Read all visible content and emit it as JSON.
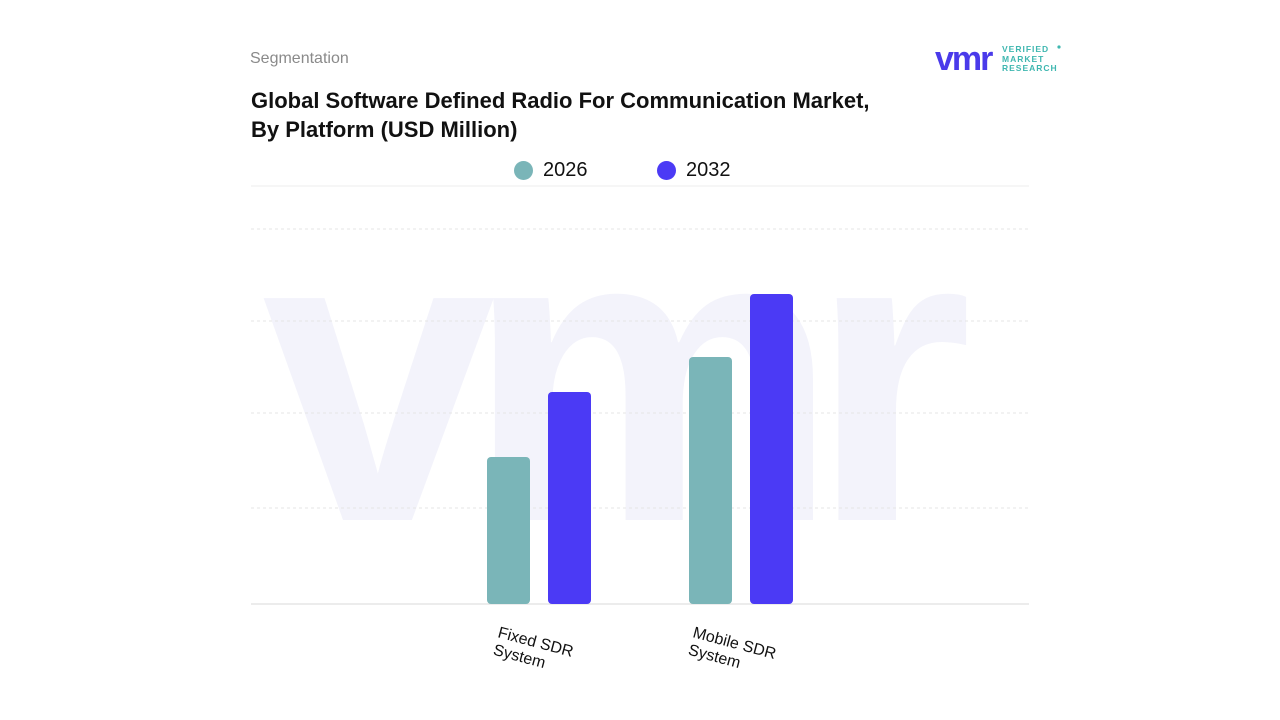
{
  "header": {
    "section_label": "Segmentation",
    "title_line1": "Global Software Defined Radio For Communication Market,",
    "title_line2": "By Platform (USD Million)"
  },
  "brand": {
    "logo_mark": "vmr",
    "logo_words": [
      "VERIFIED",
      "MARKET",
      "RESEARCH"
    ],
    "colors": {
      "primary": "#4a3aea",
      "teal": "#3fb7b0"
    }
  },
  "chart_data": {
    "type": "bar",
    "title": "Global Software Defined Radio For Communication Market, By Platform (USD Million)",
    "categories": [
      "Fixed SDR System",
      "Mobile SDR System"
    ],
    "category_lines": [
      [
        "Fixed SDR",
        "System"
      ],
      [
        "Mobile SDR",
        "System"
      ]
    ],
    "series": [
      {
        "name": "2026",
        "color": "#7ab5b8",
        "values": [
          147,
          247
        ]
      },
      {
        "name": "2032",
        "color": "#4b3af5",
        "values": [
          212,
          310
        ]
      }
    ],
    "ylim": [
      0,
      418
    ],
    "grid": true,
    "legend_position": "top-center",
    "watermark": "vmr"
  }
}
